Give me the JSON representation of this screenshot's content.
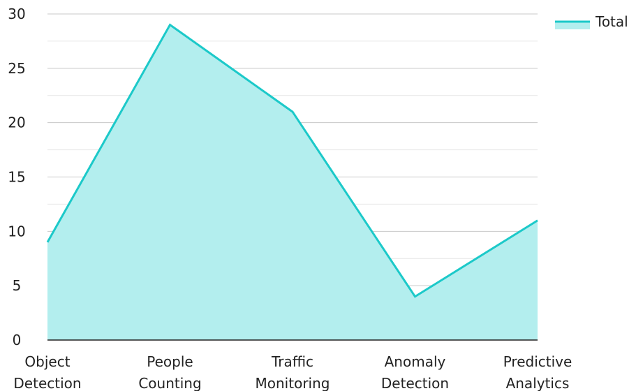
{
  "chart_data": {
    "type": "area",
    "categories": [
      [
        "Object",
        "Detection"
      ],
      [
        "People",
        "Counting"
      ],
      [
        "Traffic",
        "Monitoring"
      ],
      [
        "Anomaly",
        "Detection"
      ],
      [
        "Predictive",
        "Analytics"
      ]
    ],
    "series": [
      {
        "name": "Total",
        "values": [
          9,
          29,
          21,
          4,
          11
        ]
      }
    ],
    "ylim": [
      0,
      30
    ],
    "yticks": [
      0,
      5,
      10,
      15,
      20,
      25,
      30
    ],
    "minor_grid": true,
    "legend": "top-right",
    "colors": {
      "line": "#1cc9c9",
      "fill": "#b3eeee",
      "grid_major": "#c8c8c8",
      "grid_minor": "#e6e6e6",
      "axis": "#222222"
    }
  }
}
